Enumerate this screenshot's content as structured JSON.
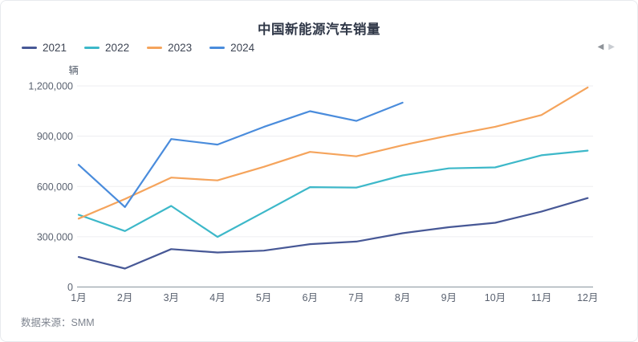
{
  "card": {
    "title": "中国新能源汽车销量",
    "source_label": "数据来源：SMM"
  },
  "pager": {
    "prev_icon": "◀",
    "next_icon": "▶"
  },
  "chart_data": {
    "type": "line",
    "title": "中国新能源汽车销量",
    "unit": "辆",
    "categories": [
      "1月",
      "2月",
      "3月",
      "4月",
      "5月",
      "6月",
      "7月",
      "8月",
      "9月",
      "10月",
      "11月",
      "12月"
    ],
    "series": [
      {
        "name": "2021",
        "color": "#475896",
        "values": [
          179000,
          110000,
          226000,
          206000,
          217000,
          256000,
          271000,
          321000,
          357000,
          383000,
          450000,
          531000
        ]
      },
      {
        "name": "2022",
        "color": "#3DB8C9",
        "values": [
          431000,
          334000,
          484000,
          299000,
          447000,
          596000,
          593000,
          666000,
          708000,
          714000,
          786000,
          814000
        ]
      },
      {
        "name": "2023",
        "color": "#F5A45C",
        "values": [
          408000,
          525000,
          653000,
          636000,
          717000,
          806000,
          780000,
          846000,
          904000,
          956000,
          1026000,
          1191000
        ]
      },
      {
        "name": "2024",
        "color": "#4A8CDC",
        "values": [
          729000,
          477000,
          883000,
          850000,
          955000,
          1049000,
          991000,
          1100000
        ]
      }
    ],
    "ylim": [
      0,
      1200000
    ],
    "yticks": [
      0,
      300000,
      600000,
      900000,
      1200000
    ],
    "grid": true,
    "legend_position": "top-left",
    "axis_color": "#9aa3ad",
    "grid_color": "#ededf0",
    "tick_text_color": "#5a6270"
  }
}
